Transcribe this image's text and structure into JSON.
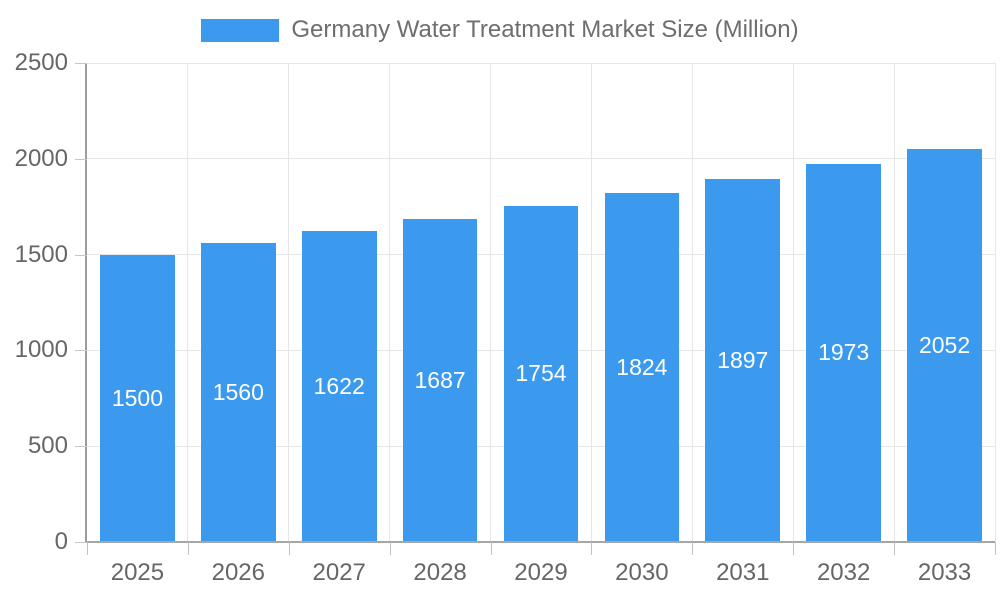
{
  "chart_data": {
    "type": "bar",
    "title": "Germany Water Treatment Market Size (Million)",
    "categories": [
      "2025",
      "2026",
      "2027",
      "2028",
      "2029",
      "2030",
      "2031",
      "2032",
      "2033"
    ],
    "values": [
      1500,
      1560,
      1622,
      1687,
      1754,
      1824,
      1897,
      1973,
      2052
    ],
    "xlabel": "",
    "ylabel": "",
    "ylim": [
      0,
      2500
    ],
    "ytick_step": 500,
    "yticks": [
      0,
      500,
      1000,
      1500,
      2000,
      2500
    ],
    "grid": true,
    "legend_position": "top",
    "legend_entries": [
      "Germany Water Treatment Market Size (Million)"
    ],
    "colors": {
      "bar": "#3B99EE",
      "value_label": "#ffffff",
      "axis_text": "#666666",
      "gridline": "#e6e6e6",
      "axis_line": "#9c9c9c"
    }
  }
}
